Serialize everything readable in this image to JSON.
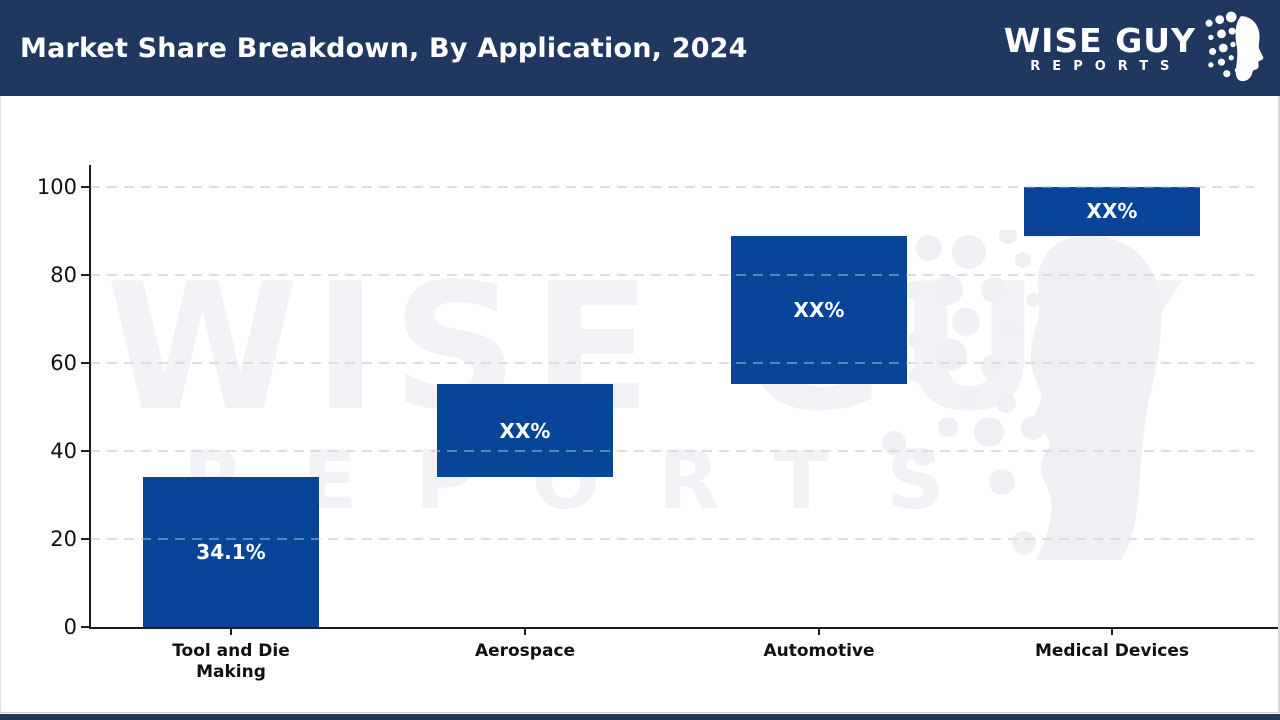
{
  "header": {
    "title": "Market Share Breakdown, By Application, 2024",
    "logo": {
      "wordmark": "WISE GUY",
      "reports": "REPORTS"
    }
  },
  "watermark": {
    "line1": "WISE GUY",
    "line2": "REPORTS"
  },
  "colors": {
    "header_bg": "#20375f",
    "footer_bg": "#20375f",
    "bar": "#084497",
    "grid": "#cbcbcb",
    "axis": "#1c1c1c",
    "watermark": "#f1f2f5"
  },
  "chart_data": {
    "type": "bar",
    "subtype": "waterfall",
    "title": "Market Share Breakdown, By Application, 2024",
    "categories": [
      "Tool and Die Making",
      "Aerospace",
      "Automotive",
      "Medical Devices"
    ],
    "category_lines": [
      [
        "Tool and Die",
        "Making"
      ],
      [
        "Aerospace"
      ],
      [
        "Automotive"
      ],
      [
        "Medical Devices"
      ]
    ],
    "segments": [
      {
        "category": "Tool and Die Making",
        "start": 0,
        "end": 34.1,
        "label": "34.1%"
      },
      {
        "category": "Aerospace",
        "start": 34.1,
        "end": 55.2,
        "label": "XX%"
      },
      {
        "category": "Automotive",
        "start": 55.2,
        "end": 88.9,
        "label": "XX%"
      },
      {
        "category": "Medical Devices",
        "start": 88.9,
        "end": 100,
        "label": "XX%"
      }
    ],
    "xlabel": "",
    "ylabel": "",
    "ylim": [
      0,
      100
    ],
    "yticks": [
      0,
      20,
      40,
      60,
      80,
      100
    ],
    "grid": "horizontal-dashed",
    "legend": "none",
    "bar_color": "#084497"
  }
}
